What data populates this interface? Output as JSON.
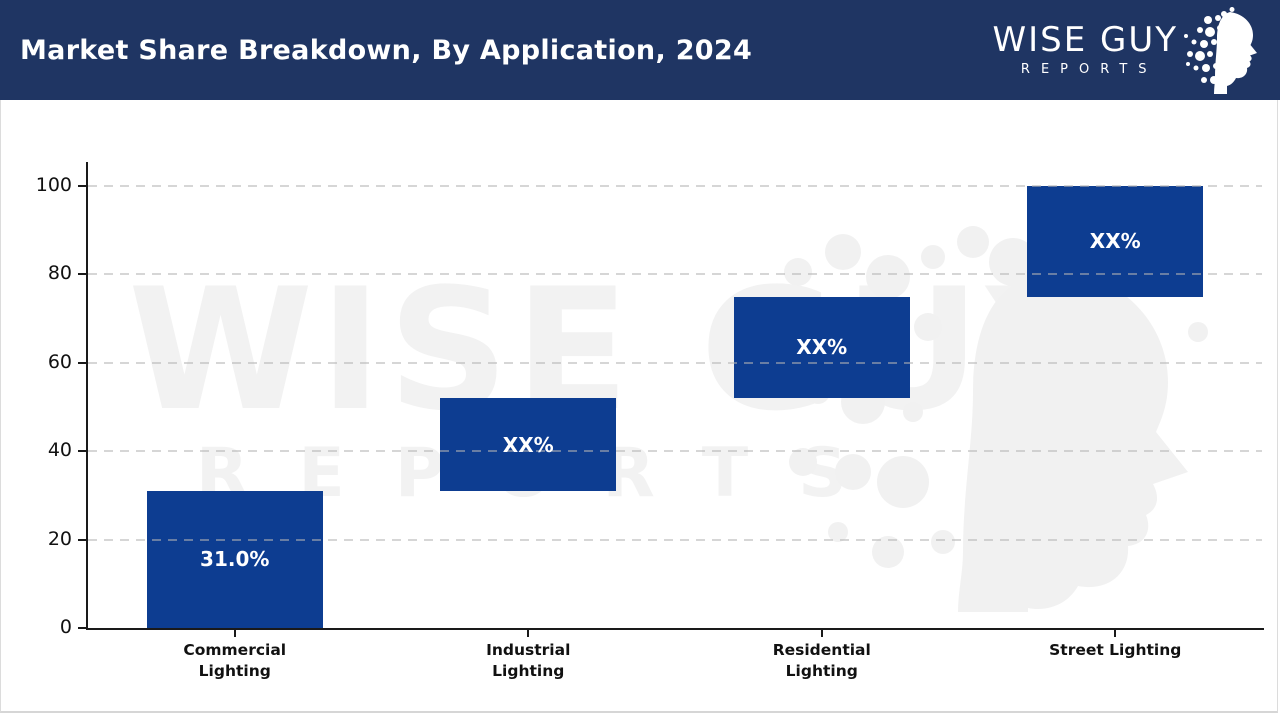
{
  "header": {
    "title": "Market Share Breakdown, By Application, 2024",
    "logo": {
      "brand_line1": "WISE GUY",
      "brand_line2": "REPORTS"
    }
  },
  "watermark": {
    "line1": "WISE GUY",
    "line2": "REPORTS"
  },
  "colors": {
    "header_bg": "#1f3563",
    "bar": "#0d3d91",
    "axis": "#1a1a1a",
    "tick_text": "#111111",
    "bar_label": "#ffffff",
    "watermark": "#f2f2f2"
  },
  "chart_data": {
    "type": "bar",
    "subtype": "waterfall",
    "title": "Market Share Breakdown, By Application, 2024",
    "xlabel": "",
    "ylabel": "",
    "ylim": [
      0,
      105
    ],
    "yticks": [
      0,
      20,
      40,
      60,
      80,
      100
    ],
    "grid": true,
    "grid_style": "dashed",
    "legend": false,
    "categories": [
      "Commercial Lighting",
      "Industrial Lighting",
      "Residential Lighting",
      "Street Lighting"
    ],
    "segments": [
      {
        "category": "Commercial Lighting",
        "category_display": "Commercial\nLighting",
        "start": 0,
        "end": 31,
        "value": 31,
        "label": "31.0%"
      },
      {
        "category": "Industrial Lighting",
        "category_display": "Industrial\nLighting",
        "start": 31,
        "end": 52,
        "value": 21,
        "label": "XX%"
      },
      {
        "category": "Residential Lighting",
        "category_display": "Residential\nLighting",
        "start": 52,
        "end": 75,
        "value": 23,
        "label": "XX%"
      },
      {
        "category": "Street Lighting",
        "category_display": "Street Lighting",
        "start": 75,
        "end": 100,
        "value": 25,
        "label": "XX%"
      }
    ]
  }
}
